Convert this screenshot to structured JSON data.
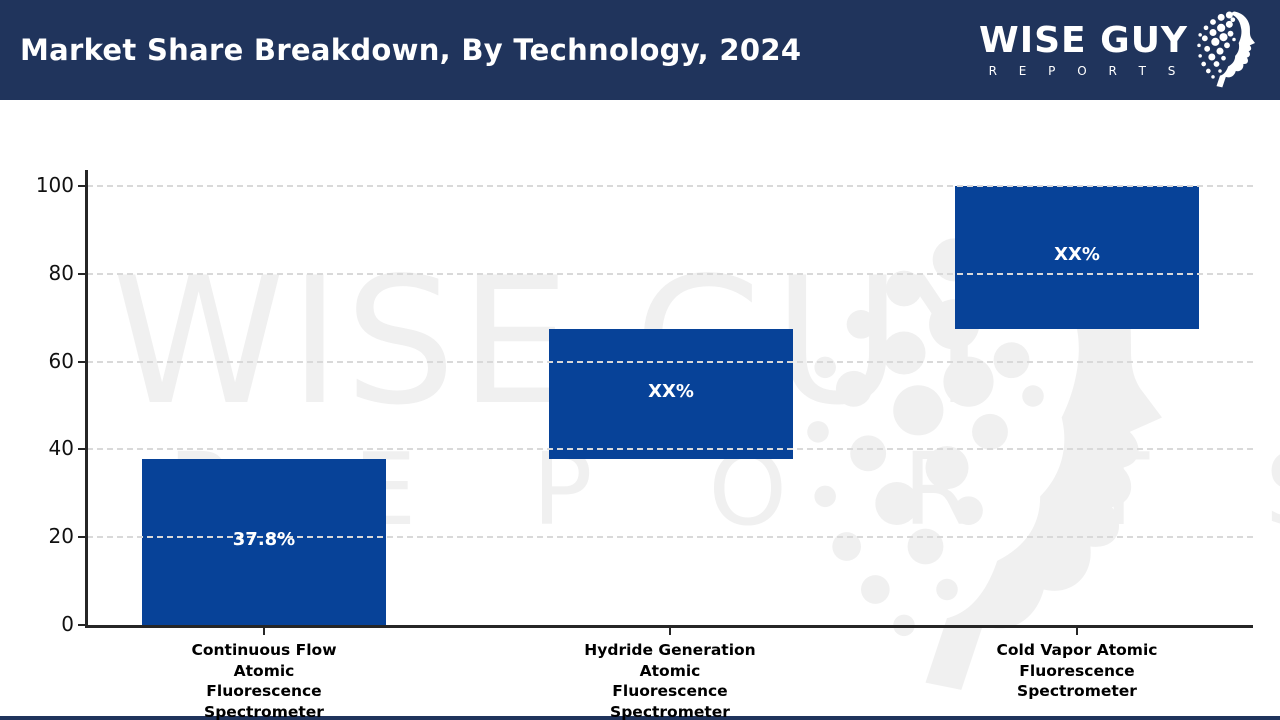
{
  "header": {
    "title": "Market Share Breakdown, By Technology, 2024",
    "logo": {
      "line1": "WISE GUY",
      "line2": "R E P O R T S"
    }
  },
  "watermark": {
    "line1": "WISE GUY",
    "line2": "R E P O R T S"
  },
  "chart_data": {
    "type": "bar",
    "subtype": "waterfall",
    "title": "Market Share Breakdown, By Technology, 2024",
    "categories": [
      [
        "Continuous Flow",
        "Atomic",
        "Fluorescence",
        "Spectrometer"
      ],
      [
        "Hydride Generation",
        "Atomic",
        "Fluorescence",
        "Spectrometer"
      ],
      [
        "Cold Vapor Atomic",
        "Fluorescence",
        "Spectrometer"
      ]
    ],
    "bars": [
      {
        "label": "37.8%",
        "start": 0,
        "end": 37.8
      },
      {
        "label": "XX%",
        "start": 37.8,
        "end": 67.5
      },
      {
        "label": "XX%",
        "start": 67.5,
        "end": 100
      }
    ],
    "ylim": [
      0,
      100
    ],
    "yticks": [
      0,
      20,
      40,
      60,
      80,
      100
    ],
    "grid": {
      "axis": "y",
      "style": "dashed",
      "above_bars": true
    },
    "legend": "none",
    "colors": {
      "header_bg": "#20345C",
      "bar": "#074298",
      "bar_label": "#ffffff",
      "grid": "#d9d9d9",
      "axis": "#262626",
      "watermark": "#f0f0f0"
    }
  }
}
